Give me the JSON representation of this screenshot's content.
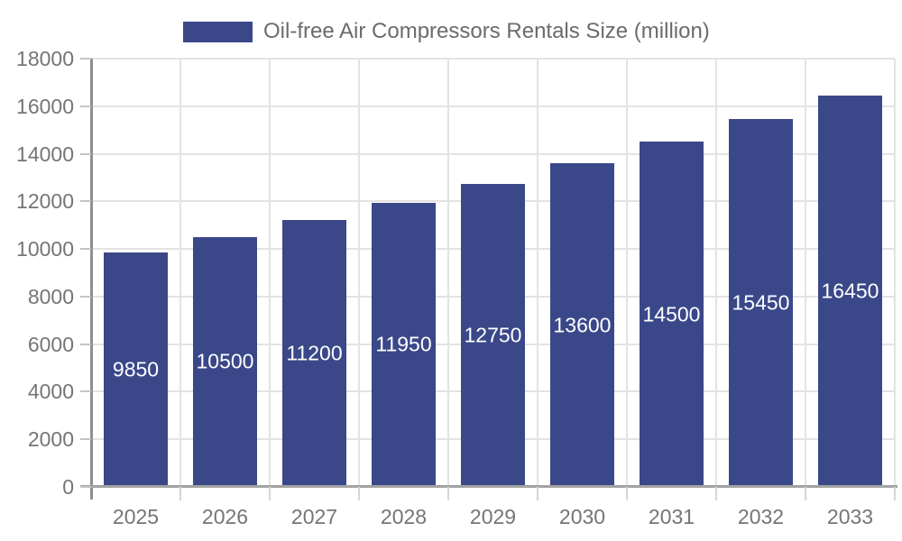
{
  "chart_data": {
    "type": "bar",
    "title": "",
    "legend": {
      "label": "Oil-free Air Compressors Rentals Size (million)",
      "position": "top"
    },
    "categories": [
      "2025",
      "2026",
      "2027",
      "2028",
      "2029",
      "2030",
      "2031",
      "2032",
      "2033"
    ],
    "values": [
      9850,
      10500,
      11200,
      11950,
      12750,
      13600,
      14500,
      15450,
      16450
    ],
    "value_labels": [
      "9850",
      "10500",
      "11200",
      "11950",
      "12750",
      "13600",
      "14500",
      "15450",
      "16450"
    ],
    "xlabel": "",
    "ylabel": "",
    "ylim": [
      0,
      18000
    ],
    "ytick_step": 2000,
    "yticks": [
      0,
      2000,
      4000,
      6000,
      8000,
      10000,
      12000,
      14000,
      16000,
      18000
    ],
    "grid": true,
    "legend_position": "top"
  },
  "colors": {
    "bar": "#3A4889",
    "value_label": "#FFFFFF",
    "gridline": "#E3E3E3",
    "axis_line_y": "#8E8E8E",
    "axis_line_x": "#A3A3A3",
    "tick_y": "#C4C4C4",
    "tick_x": "#D5D5D5",
    "axis_text": "#757575",
    "legend_text": "#6B6B6B"
  }
}
